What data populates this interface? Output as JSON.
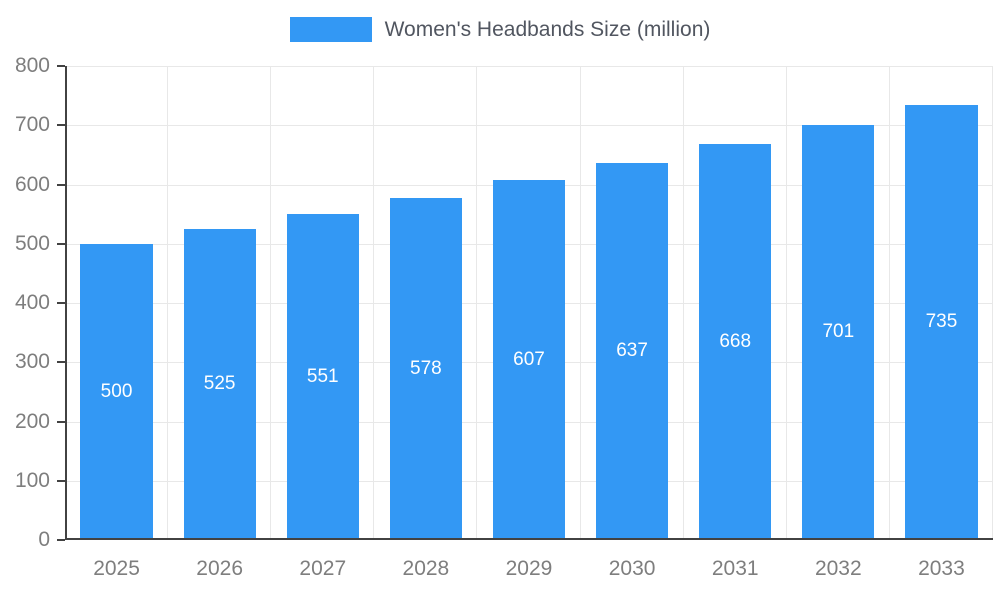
{
  "chart_data": {
    "type": "bar",
    "title": "Women's Headbands Size (million)",
    "categories": [
      "2025",
      "2026",
      "2027",
      "2028",
      "2029",
      "2030",
      "2031",
      "2032",
      "2033"
    ],
    "values": [
      500,
      525,
      551,
      578,
      607,
      637,
      668,
      701,
      735
    ],
    "xlabel": "",
    "ylabel": "",
    "ylim": [
      0,
      800
    ],
    "ytick_step": 100,
    "yticks": [
      0,
      100,
      200,
      300,
      400,
      500,
      600,
      700,
      800
    ],
    "grid": true,
    "legend_position": "top",
    "bar_labels_inside": true,
    "colors": {
      "bar": "#3398f4",
      "bar_label": "#ffffff",
      "axis": "#424242",
      "grid": "#e8e8e8",
      "tick_label": "#7e7e7e",
      "legend_text": "#515660"
    }
  }
}
